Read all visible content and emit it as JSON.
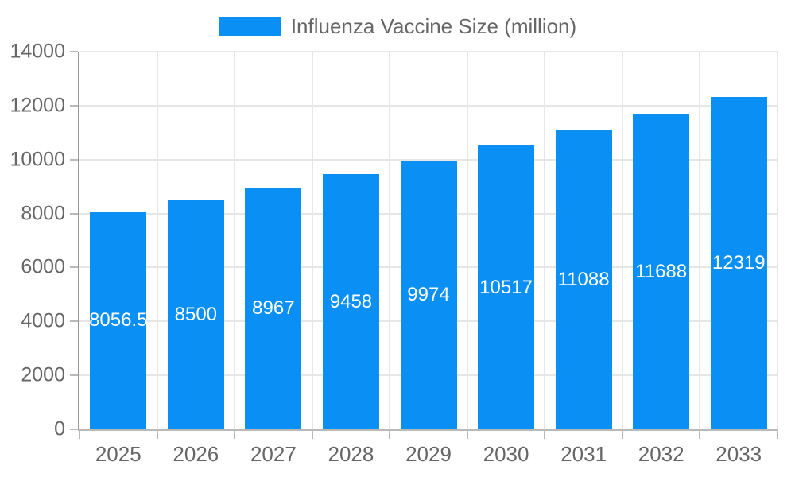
{
  "legend": {
    "label": "Influenza Vaccine Size (million)"
  },
  "chart_data": {
    "type": "bar",
    "title": "Influenza Vaccine Size (million)",
    "series": [
      {
        "name": "Influenza Vaccine Size (million)",
        "values": [
          8056.5,
          8500,
          8967,
          9458,
          9974,
          10517,
          11088,
          11688,
          12319
        ]
      }
    ],
    "categories": [
      "2025",
      "2026",
      "2027",
      "2028",
      "2029",
      "2030",
      "2031",
      "2032",
      "2033"
    ],
    "values": [
      8056.5,
      8500,
      8967,
      9458,
      9974,
      10517,
      11088,
      11688,
      12319
    ],
    "value_labels": [
      "8056.5",
      "8500",
      "8967",
      "9458",
      "9974",
      "10517",
      "11088",
      "11688",
      "12319"
    ],
    "xlabel": "",
    "ylabel": "",
    "ylim": [
      0,
      14000
    ],
    "yticks": [
      0,
      2000,
      4000,
      6000,
      8000,
      10000,
      12000,
      14000
    ],
    "grid": true,
    "legend_position": "top",
    "colors": {
      "bar": "#0a8ff5",
      "grid": "#e6e6e6",
      "y_axis": "#999999",
      "x_axis": "#b9b9b9",
      "tick": "#b9b9b9",
      "text": "#666666",
      "value_label": "#ffffff",
      "background": "#ffffff"
    }
  }
}
